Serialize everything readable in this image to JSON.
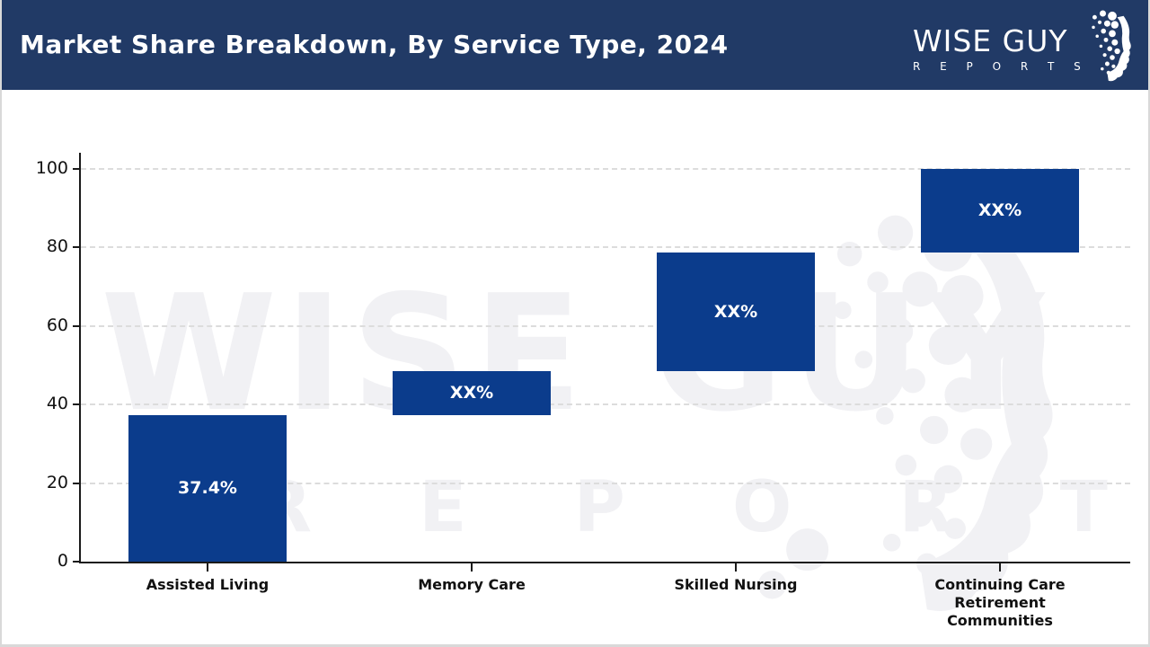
{
  "header": {
    "title": "Market Share Breakdown, By Service Type, 2024",
    "background": "#213a66",
    "logo": {
      "line1": "WISE GUY",
      "line2": "R E P O R T S"
    }
  },
  "watermark": {
    "line1": "WISE GUY",
    "line2": "R E P O R T S"
  },
  "chart_data": {
    "type": "bar",
    "subtype": "waterfall",
    "title": "Market Share Breakdown, By Service Type, 2024",
    "categories": [
      "Assisted Living",
      "Memory Care",
      "Skilled Nursing",
      "Continuing Care Retirement Communities"
    ],
    "segments": [
      {
        "category": "Assisted Living",
        "start": 0,
        "end": 37.4,
        "label": "37.4%"
      },
      {
        "category": "Memory Care",
        "start": 37.4,
        "end": 48.6,
        "label": "XX%"
      },
      {
        "category": "Skilled Nursing",
        "start": 48.6,
        "end": 78.8,
        "label": "XX%"
      },
      {
        "category": "Continuing Care Retirement Communities",
        "start": 78.8,
        "end": 100,
        "label": "XX%"
      }
    ],
    "yticks": [
      0,
      20,
      40,
      60,
      80,
      100
    ],
    "ylim": [
      0,
      103
    ],
    "xlabel": "",
    "ylabel": "",
    "grid": "dashed-horizontal",
    "legend": "none",
    "bar_color": "#0b3c8c",
    "bar_label_color": "#ffffff",
    "axis_color": "#1a1a1a"
  }
}
